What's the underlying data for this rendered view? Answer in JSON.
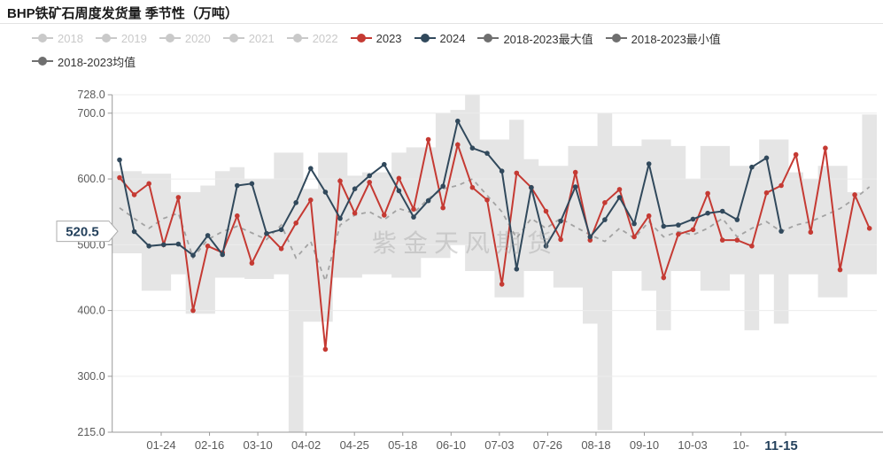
{
  "title": "BHP铁矿石周度发货量 季节性（万吨）",
  "watermark": "紫金天风期货",
  "colors": {
    "red": "#c53a33",
    "navy": "#31495c",
    "disabled": "#c9c9c9",
    "gray_marker": "#6f6f6f",
    "band": "#e5e5e5",
    "mean": "#a3a3a3",
    "grid": "#ececec",
    "axis": "#999999",
    "tick_text": "#5a5a5a",
    "pointer_text": "#24415c"
  },
  "legend": {
    "rows": [
      [
        {
          "label": "2018",
          "state": "disabled"
        },
        {
          "label": "2019",
          "state": "disabled"
        },
        {
          "label": "2020",
          "state": "disabled"
        },
        {
          "label": "2021",
          "state": "disabled"
        },
        {
          "label": "2022",
          "state": "disabled"
        },
        {
          "label": "2023",
          "state": "red"
        },
        {
          "label": "2024",
          "state": "navy"
        },
        {
          "label": "2018-2023最大值",
          "state": "gray"
        },
        {
          "label": "2018-2023最小值",
          "state": "gray"
        }
      ],
      [
        {
          "label": "2018-2023均值",
          "state": "gray"
        }
      ]
    ]
  },
  "y_axis": {
    "tick_values": [
      728,
      700,
      600,
      500,
      400,
      300,
      215
    ],
    "tick_labels": [
      "728.0",
      "700.0",
      "600.0",
      "500.0",
      "400.0",
      "300.0",
      "215.0"
    ]
  },
  "x_axis": {
    "labels": [
      "01-24",
      "02-16",
      "03-10",
      "04-02",
      "04-25",
      "05-18",
      "06-10",
      "07-03",
      "07-26",
      "08-18",
      "09-10",
      "10-03",
      "10-"
    ],
    "pointer_label": "11-15"
  },
  "axis_pointer": {
    "y_label": "520.5"
  },
  "chart_data": {
    "type": "line",
    "title": "BHP铁矿石周度发货量 季节性（万吨）",
    "ylabel": "万吨",
    "ylim": [
      215,
      728
    ],
    "grid": true,
    "legend_position": "top",
    "hidden_series": [
      "2018",
      "2019",
      "2020",
      "2021",
      "2022"
    ],
    "n_points": 52,
    "series": [
      {
        "name": "2018-2023最大值",
        "role": "band-max",
        "type": "step-area-edge",
        "values": [
          612,
          612,
          608,
          608,
          580,
          580,
          590,
          612,
          618,
          600,
          600,
          640,
          640,
          585,
          640,
          640,
          605,
          610,
          610,
          640,
          648,
          648,
          700,
          705,
          728,
          660,
          660,
          690,
          630,
          620,
          620,
          650,
          650,
          700,
          650,
          650,
          660,
          660,
          650,
          600,
          650,
          650,
          620,
          620,
          660,
          660,
          610,
          600,
          620,
          620,
          580,
          698
        ]
      },
      {
        "name": "2018-2023最小值",
        "role": "band-min",
        "type": "step-area-edge",
        "values": [
          487,
          487,
          430,
          430,
          455,
          395,
          395,
          450,
          450,
          448,
          448,
          455,
          215,
          383,
          383,
          450,
          450,
          455,
          455,
          450,
          450,
          480,
          480,
          500,
          460,
          460,
          420,
          420,
          460,
          460,
          435,
          435,
          380,
          218,
          460,
          460,
          430,
          370,
          460,
          460,
          430,
          430,
          455,
          370,
          455,
          380,
          455,
          455,
          420,
          420,
          455,
          455
        ]
      },
      {
        "name": "2018-2023均值",
        "role": "mean",
        "type": "dashed-line",
        "values": [
          556,
          540,
          525,
          540,
          548,
          480,
          508,
          520,
          528,
          518,
          508,
          530,
          480,
          505,
          445,
          530,
          545,
          550,
          538,
          555,
          548,
          570,
          585,
          590,
          600,
          575,
          550,
          510,
          540,
          525,
          540,
          527,
          515,
          505,
          525,
          510,
          535,
          512,
          520,
          515,
          525,
          540,
          512,
          525,
          535,
          520,
          530,
          535,
          545,
          555,
          570,
          588
        ]
      },
      {
        "name": "2023",
        "role": "year-line",
        "type": "line",
        "values": [
          602,
          576,
          593,
          500,
          572,
          400,
          498,
          488,
          544,
          472,
          517,
          494,
          533,
          568,
          341,
          597,
          548,
          595,
          545,
          601,
          554,
          660,
          556,
          652,
          587,
          568,
          440,
          609,
          587,
          551,
          508,
          610,
          507,
          564,
          584,
          512,
          544,
          450,
          516,
          523,
          578,
          507,
          507,
          498,
          579,
          590,
          637,
          519,
          647,
          462,
          576,
          525
        ]
      },
      {
        "name": "2024",
        "role": "year-line",
        "type": "line",
        "last_value_label": "520.5",
        "values": [
          629,
          520,
          498,
          500,
          501,
          484,
          514,
          485,
          590,
          593,
          517,
          523,
          564,
          616,
          580,
          540,
          585,
          605,
          622,
          582,
          542,
          567,
          589,
          688,
          647,
          639,
          612,
          463,
          587,
          498,
          536,
          588,
          512,
          538,
          572,
          532,
          623,
          528,
          530,
          539,
          548,
          551,
          538,
          618,
          632,
          520.5
        ]
      }
    ]
  }
}
